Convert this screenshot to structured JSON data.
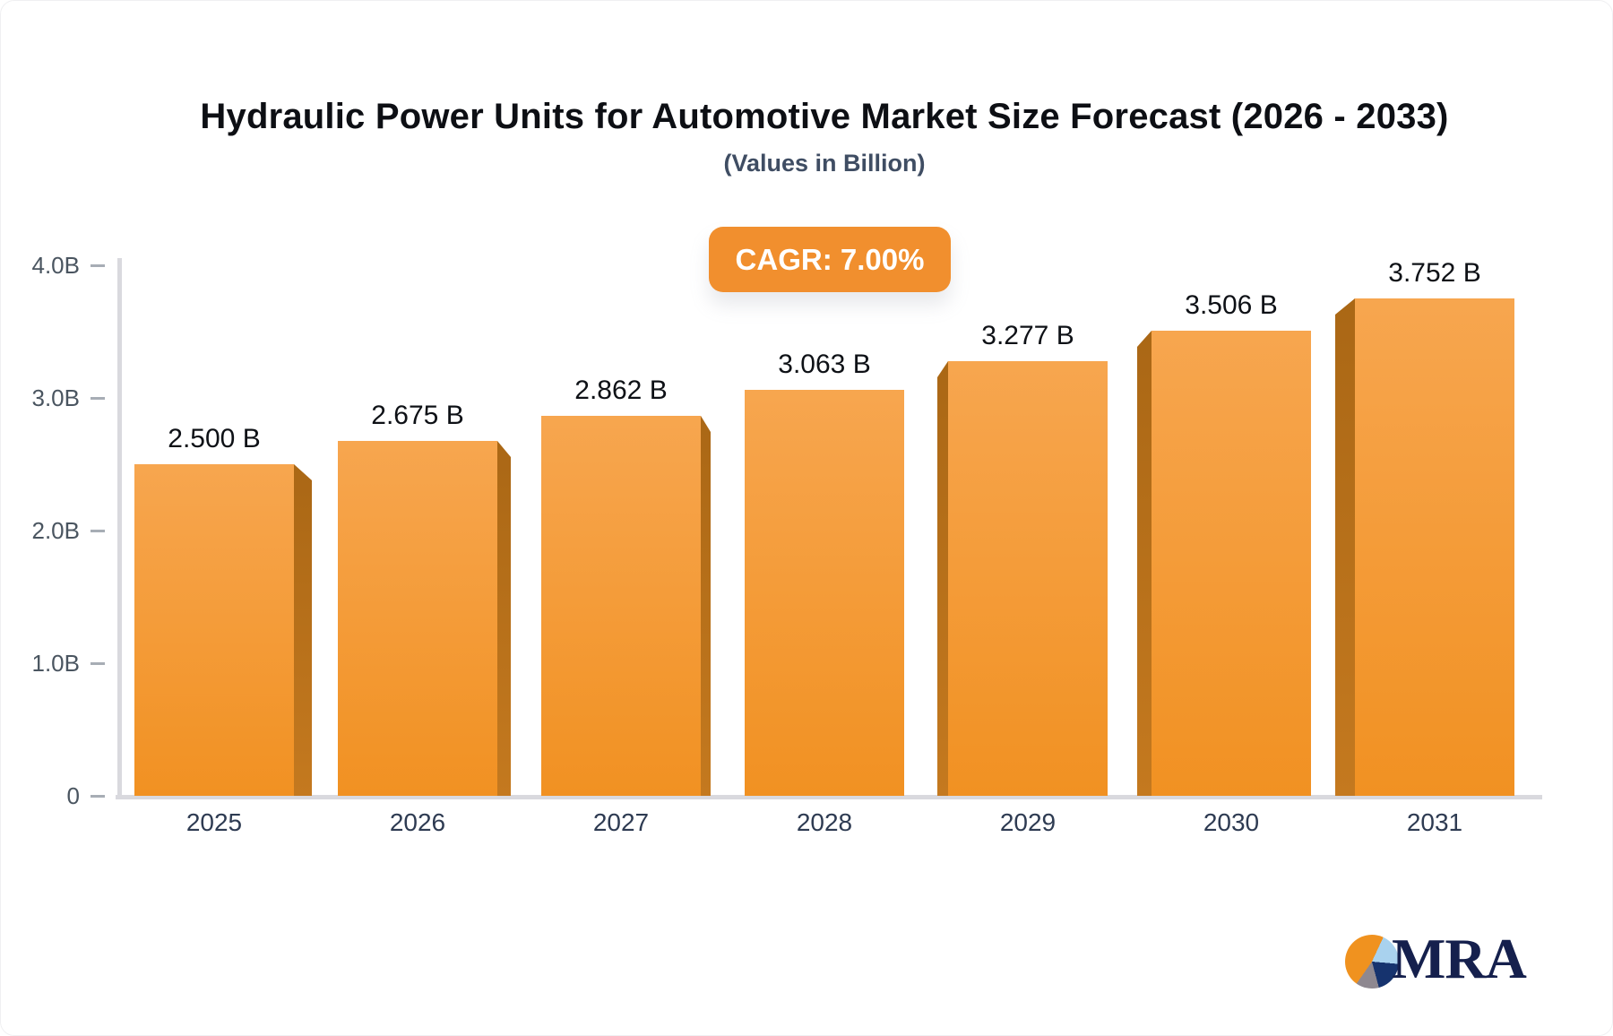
{
  "header": {
    "title": "Hydraulic Power Units for Automotive Market Size Forecast (2026 - 2033)",
    "subtitle": "(Values in Billion)"
  },
  "badge": {
    "label": "CAGR: 7.00%"
  },
  "chart_data": {
    "type": "bar",
    "title": "Hydraulic Power Units for Automotive Market Size Forecast (2026 - 2033)",
    "subtitle": "(Values in Billion)",
    "cagr_annotation": "CAGR: 7.00%",
    "categories": [
      "2025",
      "2026",
      "2027",
      "2028",
      "2029",
      "2030",
      "2031"
    ],
    "values": [
      2.5,
      2.675,
      2.862,
      3.063,
      3.277,
      3.506,
      3.752
    ],
    "value_labels": [
      "2.500 B",
      "2.675 B",
      "2.862 B",
      "3.063 B",
      "3.277 B",
      "3.506 B",
      "3.752 B"
    ],
    "xlabel": "",
    "ylabel": "",
    "ylim": [
      0,
      4
    ],
    "yticks": [
      {
        "value": 0,
        "label": "0"
      },
      {
        "value": 1,
        "label": "1.0B"
      },
      {
        "value": 2,
        "label": "2.0B"
      },
      {
        "value": 3,
        "label": "3.0B"
      },
      {
        "value": 4,
        "label": "4.0B"
      }
    ],
    "grid": false,
    "legend": false,
    "bar_style": "3d-extruded-gradient"
  },
  "colors": {
    "bar_face_top": "#F7A64F",
    "bar_face_bottom": "#F19122",
    "bar_side_top": "#AA6715",
    "bar_side_bottom": "#C4791F",
    "badge_bg": "#F18F2E",
    "badge_text": "#FFFFFF",
    "axis_line": "#D9D9DE",
    "tick_label": "#4A5560",
    "year_label": "#2E3B52",
    "value_label": "#0E1116",
    "title_text": "#0D0F14",
    "subtitle_text": "#3F4D63",
    "logo_text": "#15204D",
    "logo_orange": "#F0921F",
    "logo_blue": "#A9D2EE",
    "logo_navy": "#16336E",
    "logo_gray": "#8E8890"
  },
  "logo": {
    "text": "MRA"
  }
}
